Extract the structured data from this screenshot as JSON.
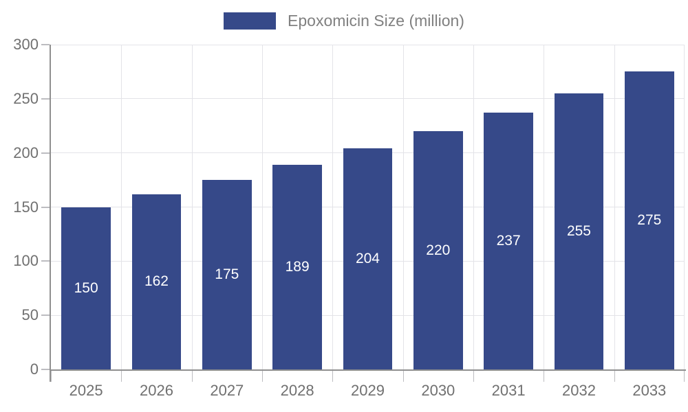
{
  "colors": {
    "bar": "#364989",
    "axis_line": "#8f8f8f",
    "gridline": "#e3e3e8",
    "tick_mark": "#bcbcc0",
    "tick_label_text": "#707070",
    "legend_text": "#808080",
    "value_label_text": "#ffffff",
    "background": "#ffffff"
  },
  "chart_data": {
    "type": "bar",
    "title": "",
    "legend": "Epoxomicin Size (million)",
    "legend_position": "top-center",
    "categories": [
      "2025",
      "2026",
      "2027",
      "2028",
      "2029",
      "2030",
      "2031",
      "2032",
      "2033"
    ],
    "values": [
      150,
      162,
      175,
      189,
      204,
      220,
      237,
      255,
      275
    ],
    "xlabel": "",
    "ylabel": "",
    "ylim": [
      0,
      300
    ],
    "yticks": [
      0,
      50,
      100,
      150,
      200,
      250,
      300
    ],
    "grid": true,
    "value_labels": "inside-center"
  }
}
